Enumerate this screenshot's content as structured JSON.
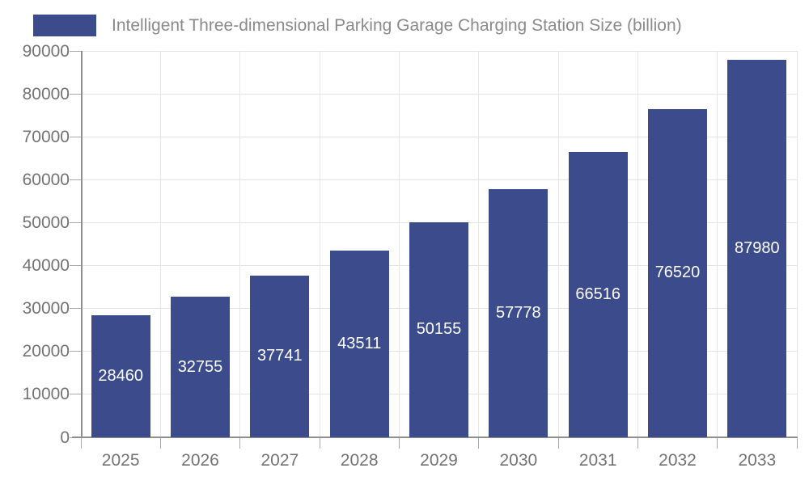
{
  "legend": {
    "label": "Intelligent Three-dimensional Parking Garage Charging Station Size (billion)",
    "swatch_color": "#3B4B8B"
  },
  "chart_data": {
    "type": "bar",
    "title": "Intelligent Three-dimensional Parking Garage Charging Station Size (billion)",
    "categories": [
      "2025",
      "2026",
      "2027",
      "2028",
      "2029",
      "2030",
      "2031",
      "2032",
      "2033"
    ],
    "values": [
      28460,
      32755,
      37741,
      43511,
      50155,
      57778,
      66516,
      76520,
      87980
    ],
    "xlabel": "",
    "ylabel": "",
    "ylim": [
      0,
      90000
    ],
    "yticks": [
      0,
      10000,
      20000,
      30000,
      40000,
      50000,
      60000,
      70000,
      80000,
      90000
    ],
    "grid": true,
    "legend_position": "top-left",
    "bar_color": "#3B4B8B",
    "value_label_color": "#ffffff",
    "axis_text_color": "#737373",
    "legend_text_color": "#8a8a8a",
    "gridline_color": "#e4e4e4",
    "axis_line_color": "#8f8f8f"
  }
}
